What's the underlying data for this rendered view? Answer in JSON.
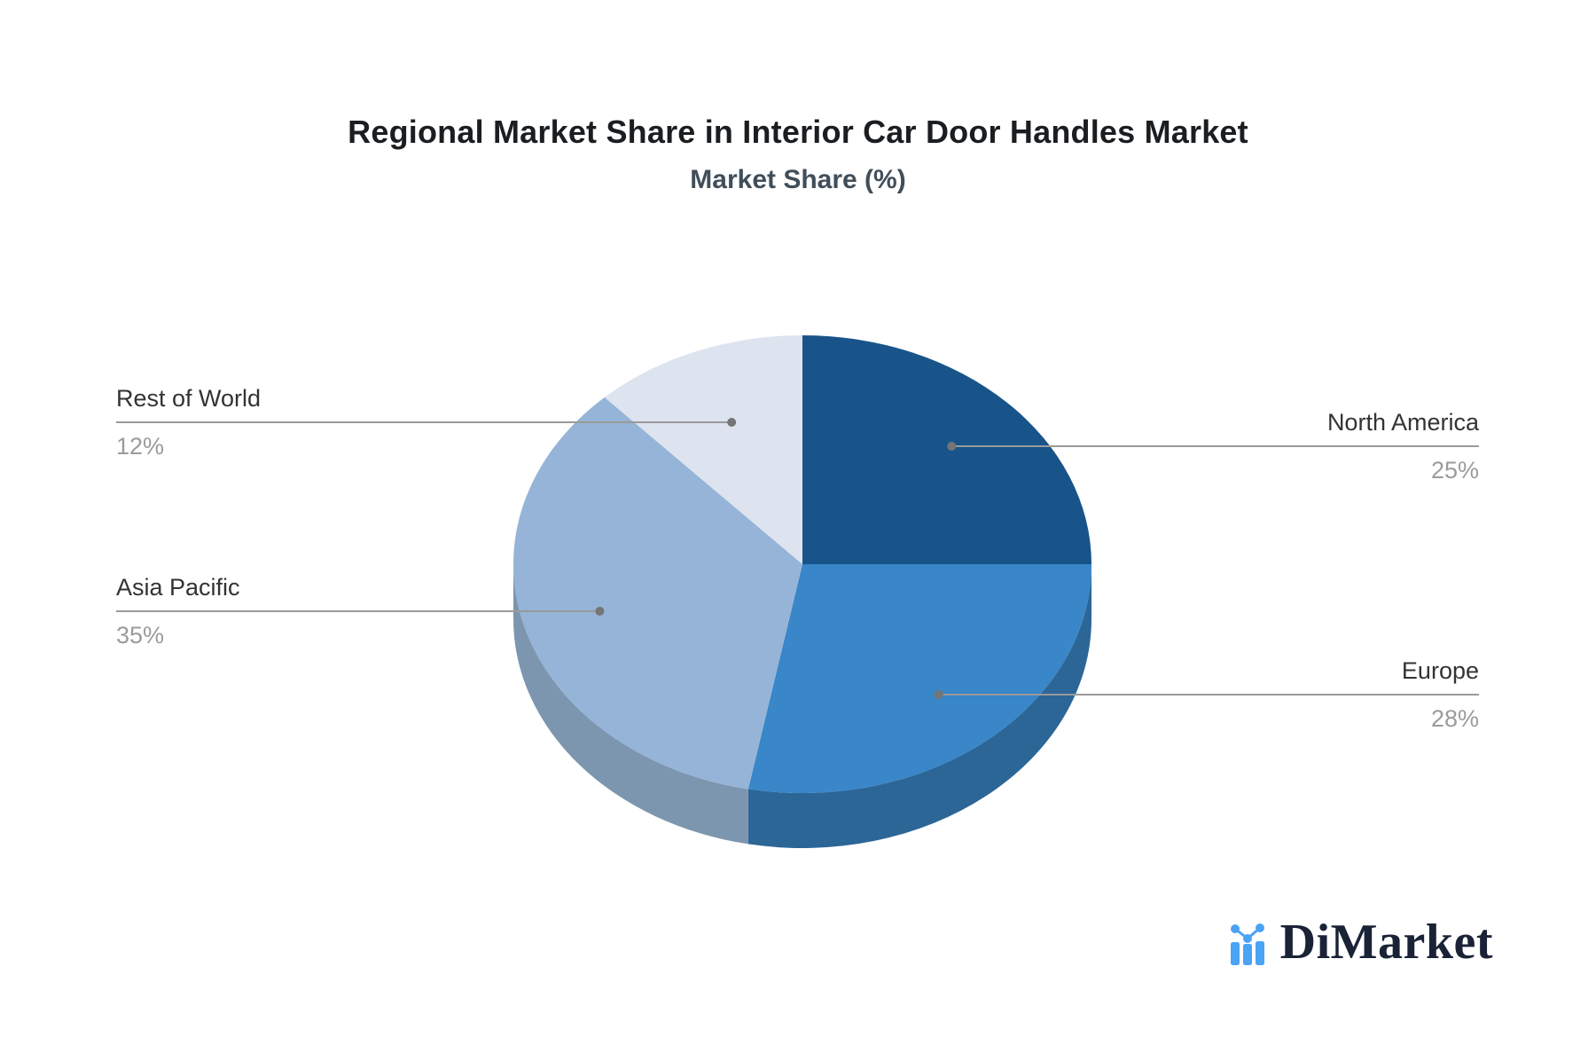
{
  "title": "Regional Market Share in Interior Car Door Handles Market",
  "subtitle": "Market Share (%)",
  "chart_data": {
    "type": "pie",
    "title": "Regional Market Share in Interior Car Door Handles Market",
    "subtitle": "Market Share (%)",
    "unit": "%",
    "effect": "3d-depth",
    "rotation": "clockwise-from-top",
    "legend": "none",
    "labels_style": "outside-with-leader-lines-and-dots",
    "slices": [
      {
        "label": "North America",
        "value": 25,
        "pct_label": "25%",
        "color": "#185489",
        "side_color": "#143F66",
        "label_side": "right",
        "label_anchor_r": 0.73
      },
      {
        "label": "Europe",
        "value": 28,
        "pct_label": "28%",
        "color": "#3986C8",
        "side_color": "#2B6697",
        "label_side": "right",
        "label_anchor_r": 0.74
      },
      {
        "label": "Asia Pacific",
        "value": 35,
        "pct_label": "35%",
        "color": "#95B4D7",
        "side_color": "#7D96AF",
        "label_side": "left",
        "label_anchor_r": 0.73
      },
      {
        "label": "Rest of World",
        "value": 12,
        "pct_label": "12%",
        "color": "#DDE4EF",
        "side_color": "#B8C3D3",
        "label_side": "left",
        "label_anchor_r": 0.665
      }
    ]
  },
  "brand": {
    "name": "DiMarket",
    "icon": "bar-line-chart-icon",
    "icon_color": "#4BA3F5",
    "text_color": "#1A2236"
  },
  "colors": {
    "background": "#FFFFFF",
    "title": "#1B1E21",
    "subtitle": "#414E5A",
    "label_name": "#333333",
    "label_value": "#9B9B9B",
    "leader_line": "#9A9A9A",
    "leader_dot": "#757575"
  }
}
